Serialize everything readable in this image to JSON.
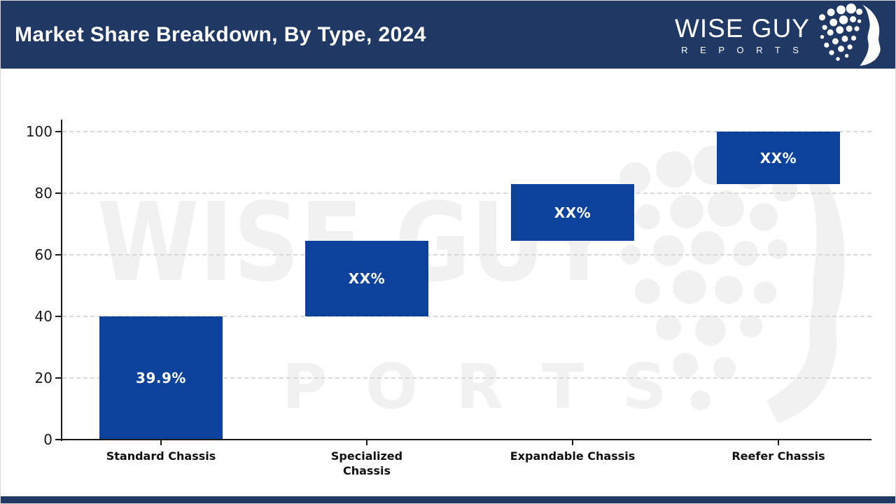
{
  "header": {
    "title": "Market Share Breakdown, By Type, 2024",
    "logo": {
      "name": "WISE GUY",
      "sub": "R E P O R T S"
    }
  },
  "watermark": {
    "line1": "WISE GUY",
    "line2": "P O R T S"
  },
  "colors": {
    "header_bg": "#1f3864",
    "bar": "#0d429c",
    "bar_label": "#ffffff",
    "axis": "#1a1a1a",
    "grid": "#d9d9d9",
    "watermark": "#f1f1f1"
  },
  "chart_data": {
    "type": "bar",
    "variant": "floating-segment (waterfall-style market share breakdown)",
    "title": "Market Share Breakdown, By Type, 2024",
    "categories": [
      "Standard Chassis",
      "Specialized\nChassis",
      "Expandable Chassis",
      "Reefer Chassis"
    ],
    "segments": [
      {
        "category": "Standard Chassis",
        "start": 0,
        "end": 39.9,
        "label": "39.9%"
      },
      {
        "category": "Specialized Chassis",
        "start": 39.9,
        "end": 64.5,
        "label": "XX%"
      },
      {
        "category": "Expandable Chassis",
        "start": 64.5,
        "end": 82.9,
        "label": "XX%"
      },
      {
        "category": "Reefer Chassis",
        "start": 82.9,
        "end": 100,
        "label": "XX%"
      }
    ],
    "values_pct": [
      39.9,
      24.6,
      18.4,
      17.1
    ],
    "xlabel": "",
    "ylabel": "",
    "ylim": [
      0,
      100
    ],
    "yticks": [
      0,
      20,
      40,
      60,
      80,
      100
    ],
    "grid": "horizontal-dashed",
    "legend": "none",
    "bar_color": "#0d429c"
  }
}
